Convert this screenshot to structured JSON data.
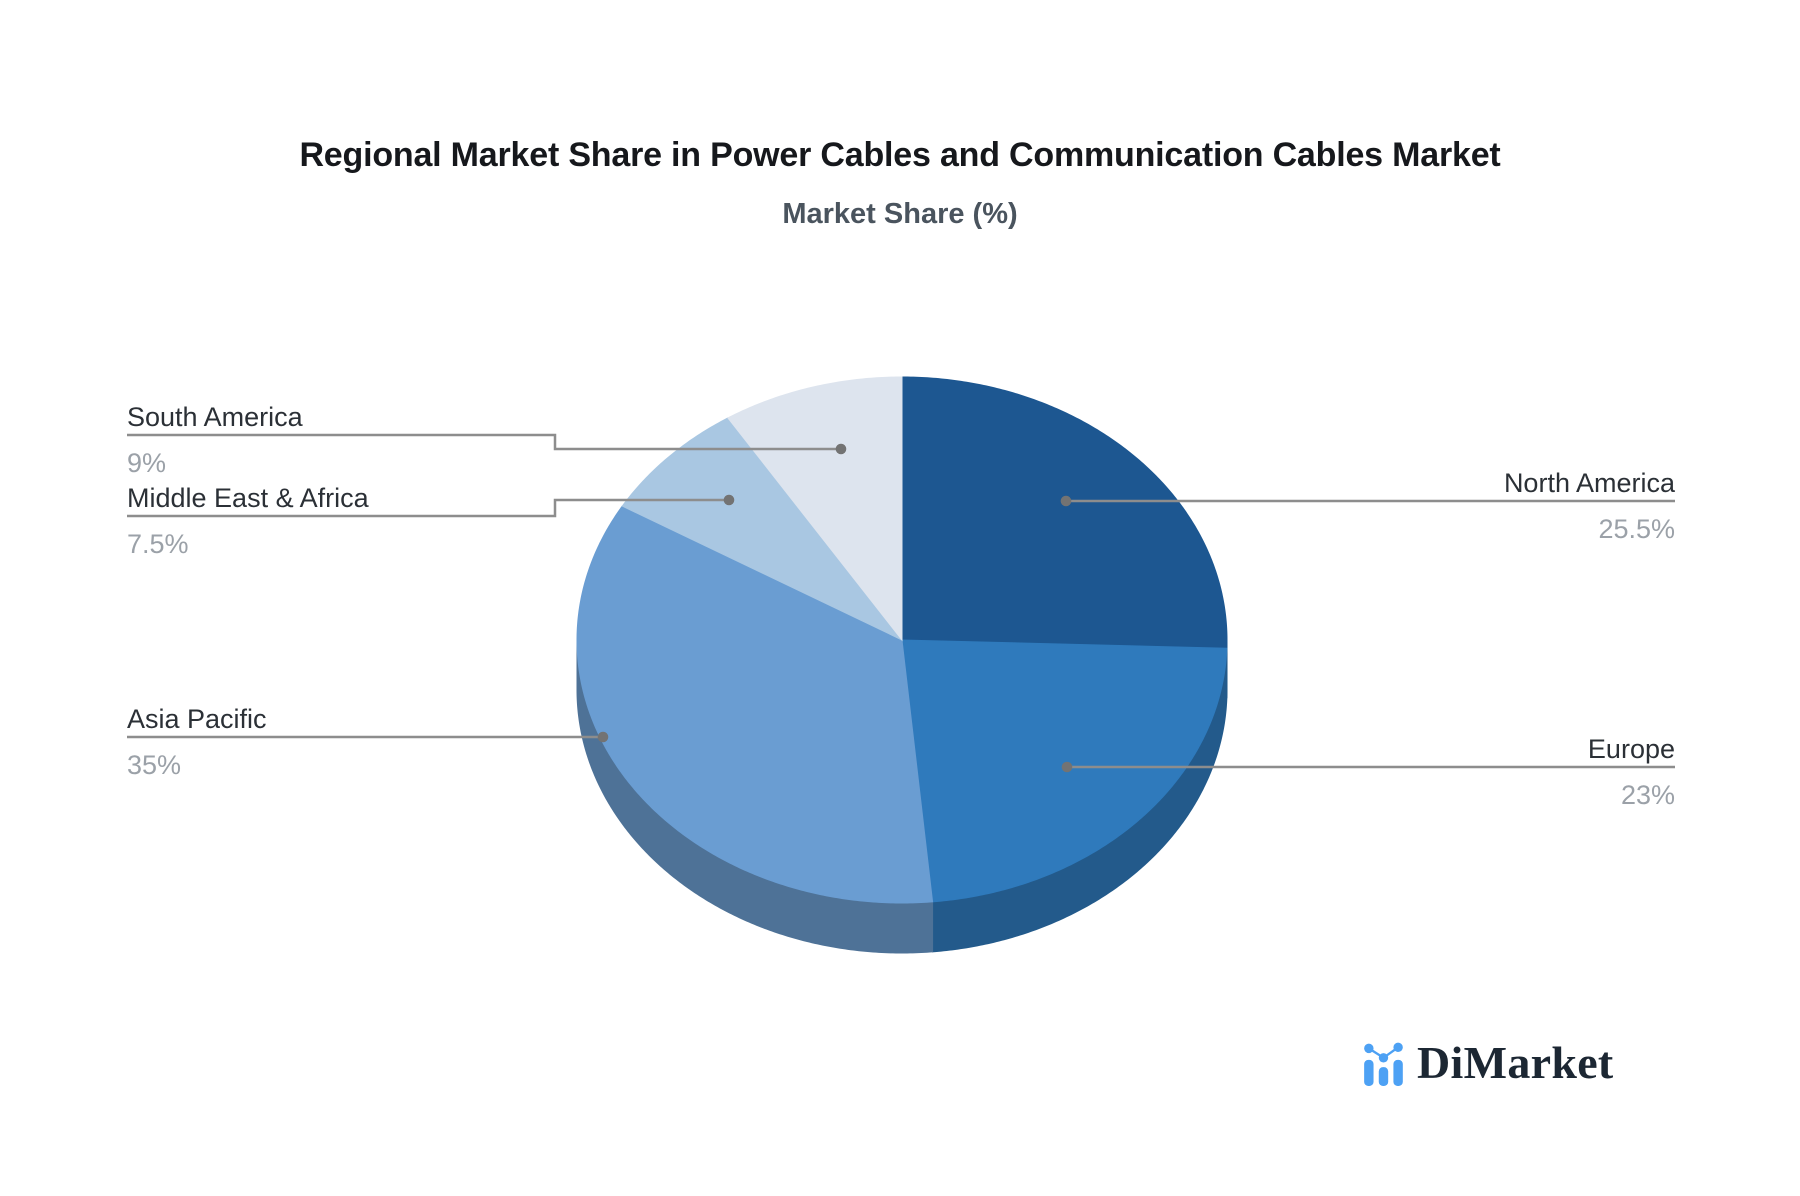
{
  "chart_data": {
    "type": "pie",
    "title": "Regional Market Share in Power Cables and Communication Cables Market",
    "subtitle": "Market Share (%)",
    "unit": "%",
    "start_angle_deg": -90,
    "direction": "clockwise",
    "style": "3d-pie-with-depth",
    "labels_position": "outside-with-leader-lines",
    "slices": [
      {
        "label": "North America",
        "value": 25.5,
        "value_label": "25.5%",
        "color": "#1d5791",
        "side_color": "#174672"
      },
      {
        "label": "Europe",
        "value": 23,
        "value_label": "23%",
        "color": "#2f7abc",
        "side_color": "#235a8b"
      },
      {
        "label": "Asia Pacific",
        "value": 35,
        "value_label": "35%",
        "color": "#6a9dd2",
        "side_color": "#4e7297"
      },
      {
        "label": "Middle East & Africa",
        "value": 7.5,
        "value_label": "7.5%",
        "color": "#a9c7e2",
        "side_color": "#8099ad"
      },
      {
        "label": "South America",
        "value": 9,
        "value_label": "9%",
        "color": "#dde4ee",
        "side_color": "#aab0ba"
      }
    ]
  },
  "palette": {
    "background": "#ffffff",
    "title_color": "#16181c",
    "subtitle_color": "#4a545e",
    "label_color": "#2b3036",
    "value_color": "#9ba1a8",
    "leader_line_color": "#8d8d8d",
    "leader_dot_color": "#737373",
    "brand_text_color": "#1c2733",
    "brand_icon_color": "#4da1f4"
  },
  "brand": {
    "name": "DiMarket",
    "icon": "bar-chart-trend-icon"
  }
}
